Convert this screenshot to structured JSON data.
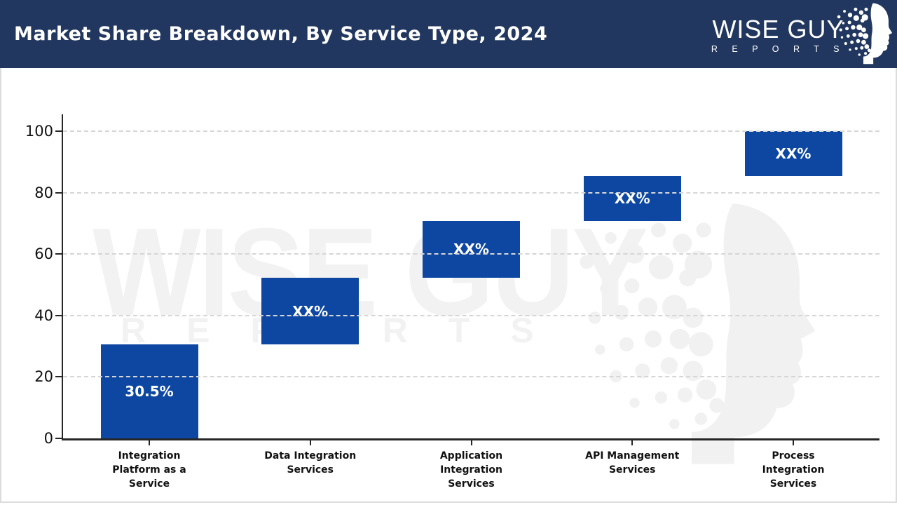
{
  "header": {
    "title": "Market Share Breakdown, By Service Type, 2024"
  },
  "logo": {
    "brand_top": "WISE GUY",
    "brand_bottom": "R E P O R T S"
  },
  "watermark": {
    "line1": "WISE GUY",
    "line2": "REPORTS"
  },
  "colors": {
    "header_bg": "#21375f",
    "bar": "#0d47a1",
    "grid": "#d6d6d6",
    "axis": "#262626",
    "bar_label_text": "#ffffff",
    "watermark": "#f2f2f2"
  },
  "chart_data": {
    "type": "bar",
    "subtype": "waterfall",
    "title": "Market Share Breakdown, By Service Type, 2024",
    "categories": [
      {
        "name": "Integration Platform as a Service",
        "lines": [
          "Integration",
          "Platform as a",
          "Service"
        ]
      },
      {
        "name": "Data Integration Services",
        "lines": [
          "Data Integration",
          "Services"
        ]
      },
      {
        "name": "Application Integration Services",
        "lines": [
          "Application",
          "Integration",
          "Services"
        ]
      },
      {
        "name": "API Management Services",
        "lines": [
          "API Management",
          "Services"
        ]
      },
      {
        "name": "Process Integration Services",
        "lines": [
          "Process",
          "Integration",
          "Services"
        ]
      }
    ],
    "segments": [
      {
        "label": "30.5%",
        "start": 0,
        "end": 30.5
      },
      {
        "label": "XX%",
        "start": 30.5,
        "end": 52.3
      },
      {
        "label": "XX%",
        "start": 52.3,
        "end": 70.8
      },
      {
        "label": "XX%",
        "start": 70.8,
        "end": 85.4
      },
      {
        "label": "XX%",
        "start": 85.4,
        "end": 100
      }
    ],
    "yticks": [
      0,
      20,
      40,
      60,
      80,
      100
    ],
    "ylim": [
      0,
      100
    ],
    "xlabel": "",
    "ylabel": "",
    "grid": "dashed-horizontal-over-bars",
    "legend": "none",
    "bar_color": "#0d47a1"
  }
}
